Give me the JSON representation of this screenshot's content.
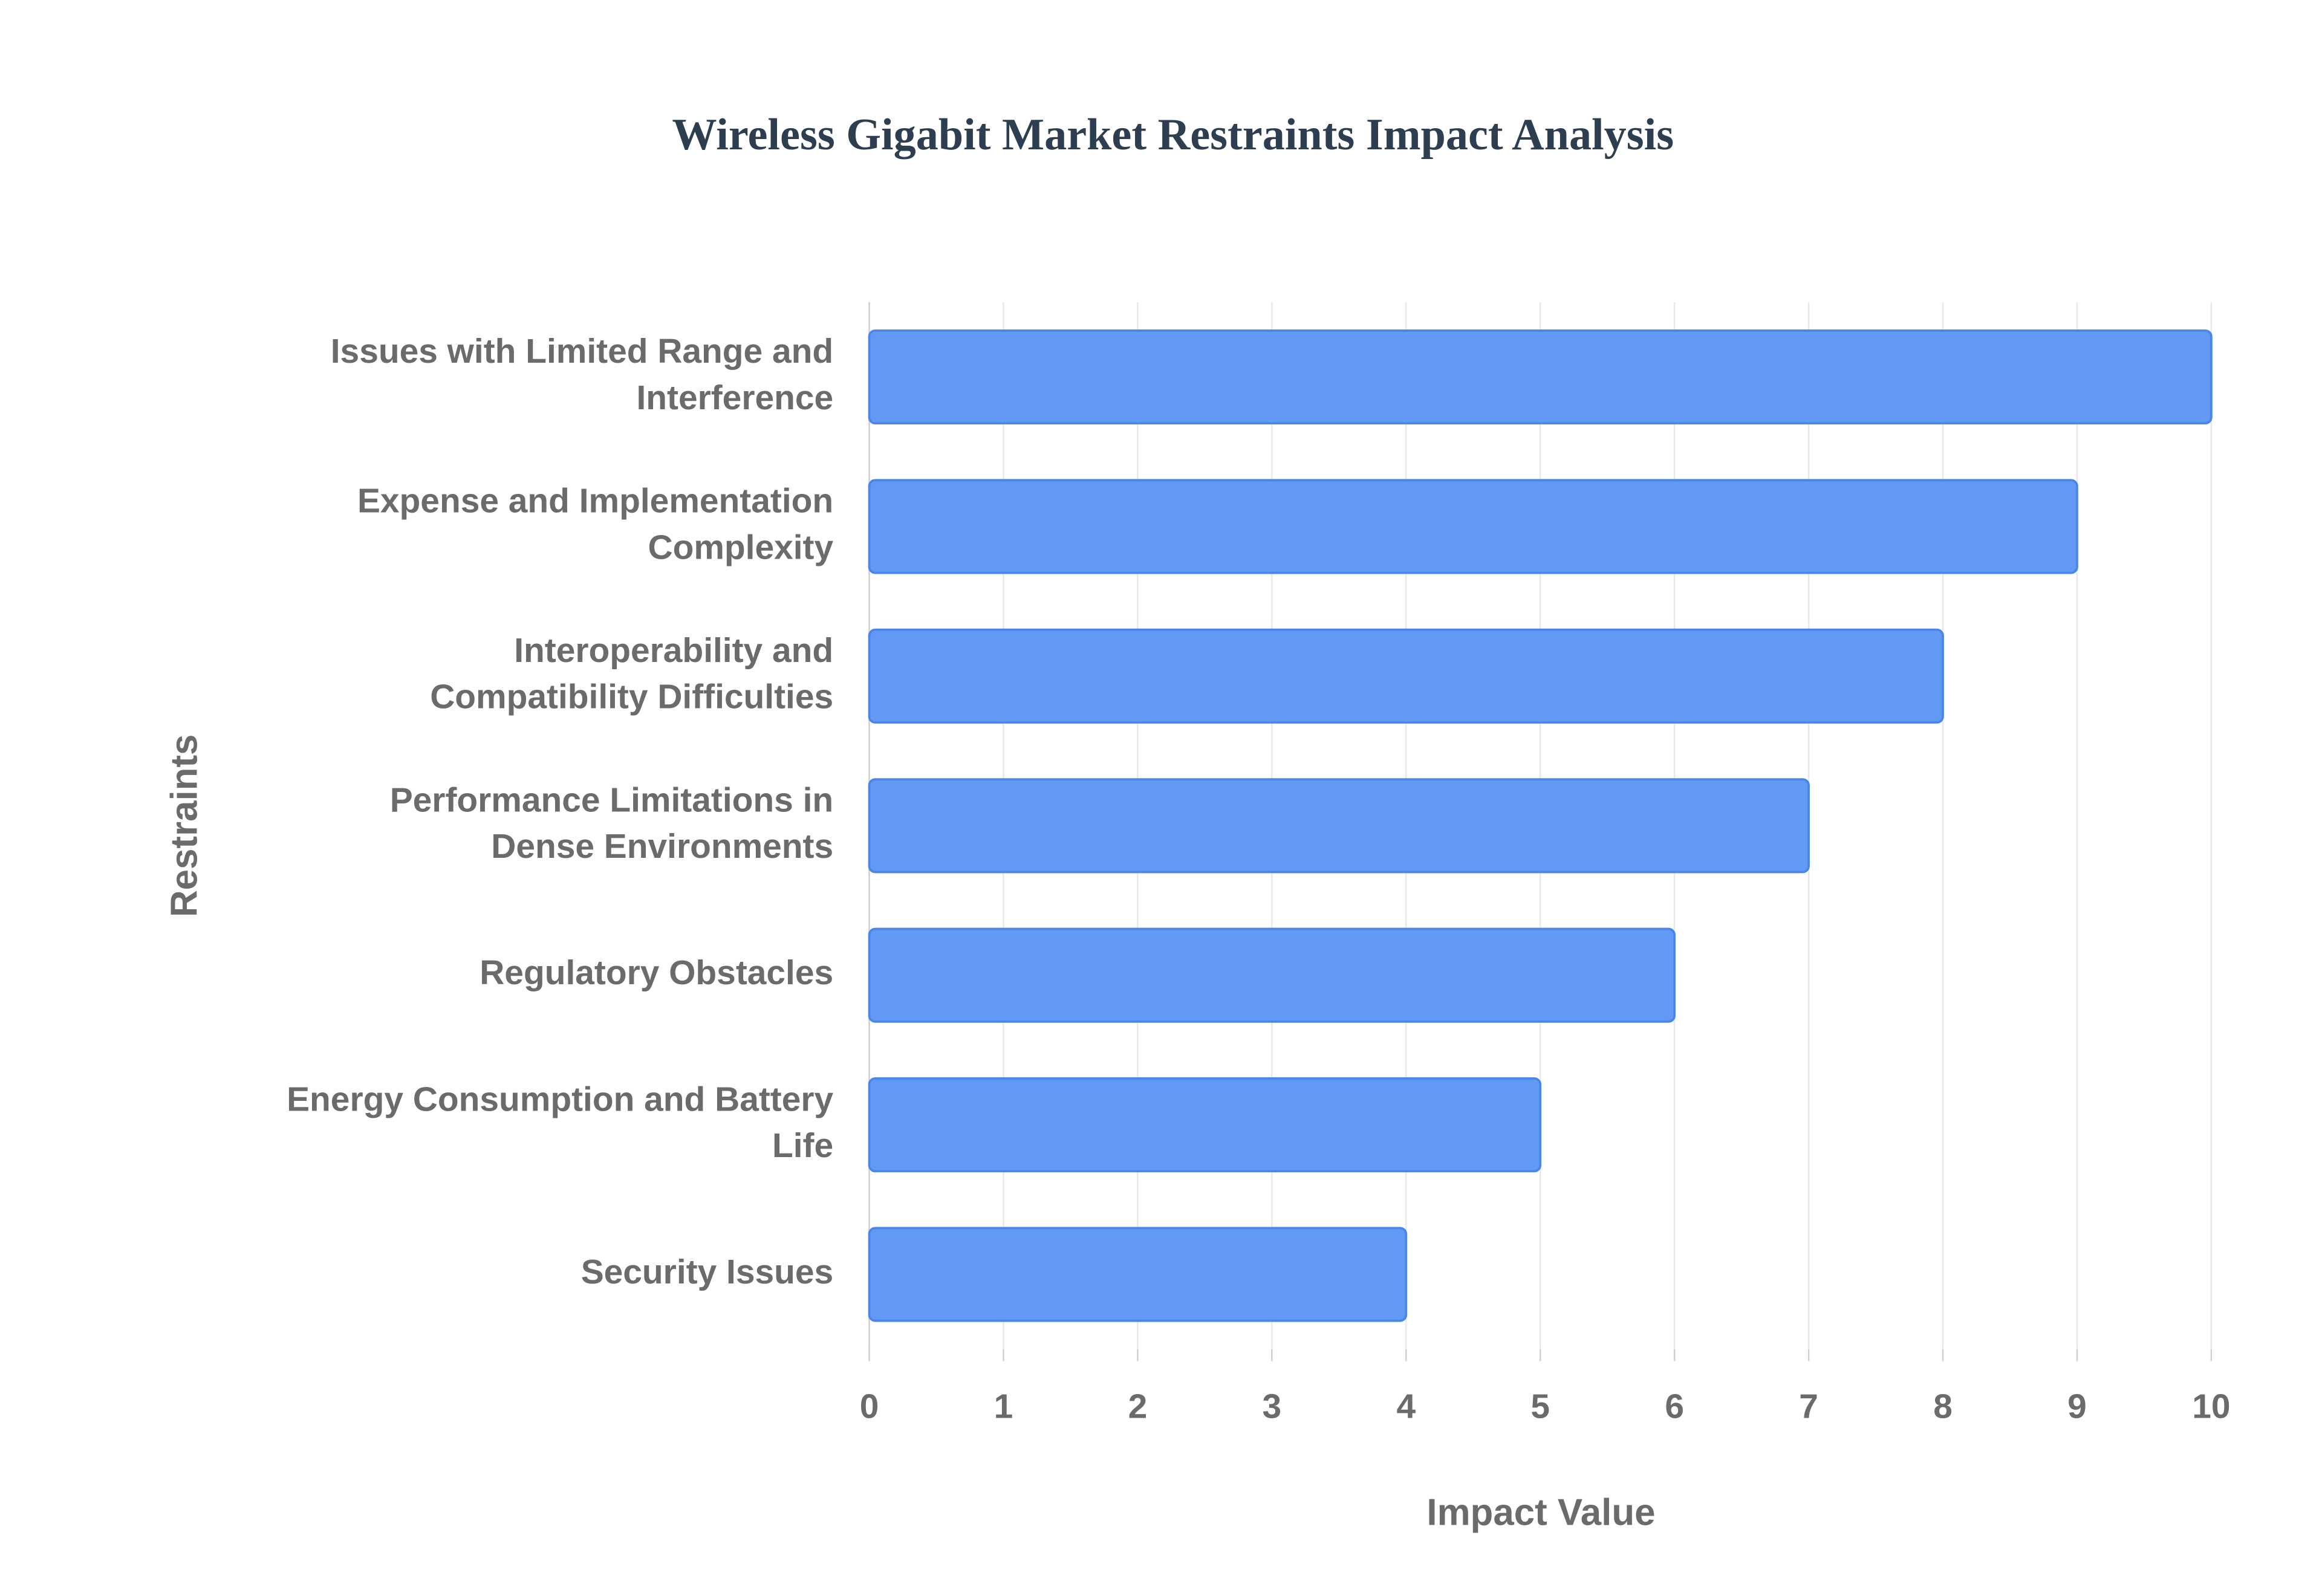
{
  "chart_data": {
    "type": "bar",
    "orientation": "horizontal",
    "title": "Wireless Gigabit Market Restraints Impact Analysis",
    "xlabel": "Impact Value",
    "ylabel": "Restraints",
    "categories": [
      "Issues with Limited Range and Interference",
      "Expense and Implementation Complexity",
      "Interoperability and Compatibility Difficulties",
      "Performance Limitations in Dense Environments",
      "Regulatory Obstacles",
      "Energy Consumption and Battery Life",
      "Security Issues"
    ],
    "values": [
      10,
      9,
      8,
      7,
      6,
      5,
      4
    ],
    "color": "#6199f5",
    "xlim": [
      0,
      10
    ],
    "xticks": [
      0,
      1,
      2,
      3,
      4,
      5,
      6,
      7,
      8,
      9,
      10
    ],
    "grid": true
  }
}
